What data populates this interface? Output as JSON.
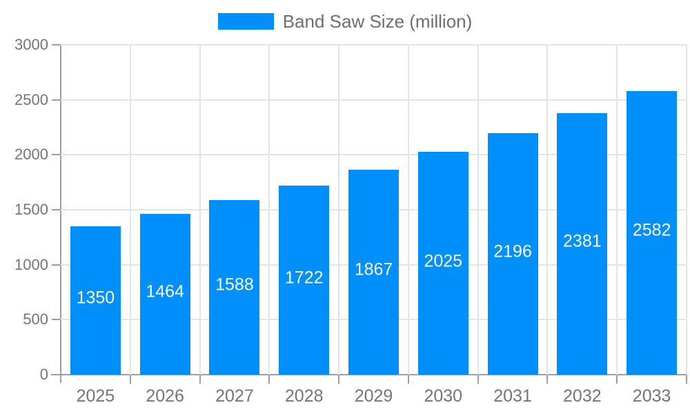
{
  "chart_data": {
    "type": "bar",
    "title": "Band Saw Size (million)",
    "categories": [
      "2025",
      "2026",
      "2027",
      "2028",
      "2029",
      "2030",
      "2031",
      "2032",
      "2033"
    ],
    "series": [
      {
        "name": "Band Saw Size (million)",
        "values": [
          1350,
          1464,
          1588,
          1722,
          1867,
          2025,
          2196,
          2381,
          2582
        ]
      }
    ],
    "xlabel": "",
    "ylabel": "",
    "ylim": [
      0,
      3000
    ],
    "y_ticks": [
      0,
      500,
      1000,
      1500,
      2000,
      2500,
      3000
    ],
    "grid": true,
    "legend_position": "top-center",
    "bar_color": "#008FFB",
    "data_label_color": "#ffffff",
    "axis_label_color": "#757575",
    "legend_text_color": "#6e6e6e",
    "gridline_color": "#e4e4e4",
    "axis_line_color": "#9e9e9e"
  }
}
